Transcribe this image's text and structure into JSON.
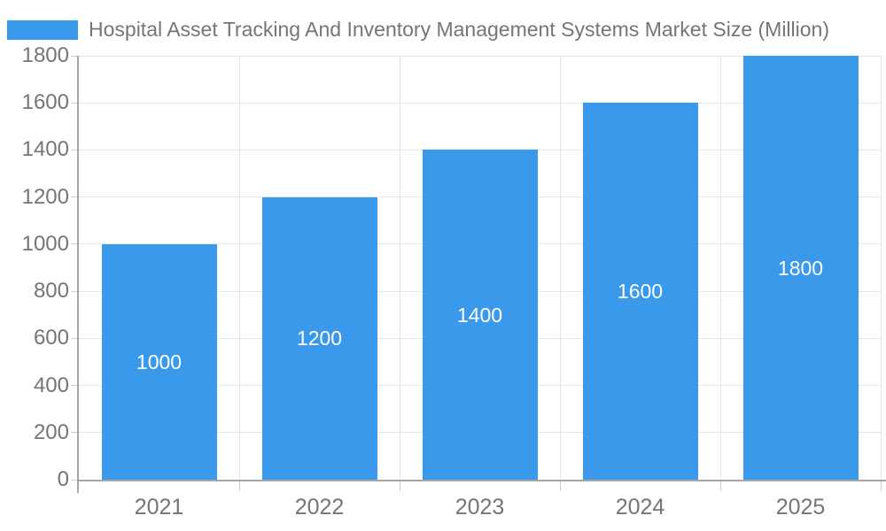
{
  "legend": {
    "label": "Hospital Asset Tracking And Inventory Management Systems Market Size (Million)"
  },
  "colors": {
    "bar": "#3B99EC",
    "grid": "#e6e6e6",
    "tick": "#cccccc",
    "axis": "#a6a6a6",
    "text": "#757575",
    "value_label": "#ffffff",
    "background": "#ffffff"
  },
  "chart_data": {
    "type": "bar",
    "title": "Hospital Asset Tracking And Inventory Management Systems Market Size (Million)",
    "categories": [
      "2021",
      "2022",
      "2023",
      "2024",
      "2025"
    ],
    "values": [
      1000,
      1200,
      1400,
      1600,
      1800
    ],
    "series": [
      {
        "name": "Hospital Asset Tracking And Inventory Management Systems Market Size (Million)",
        "values": [
          1000,
          1200,
          1400,
          1600,
          1800
        ]
      }
    ],
    "value_labels": [
      "1000",
      "1200",
      "1400",
      "1600",
      "1800"
    ],
    "xlabel": "",
    "ylabel": "",
    "ylim": [
      0,
      1800
    ],
    "ytick_step": 200,
    "yticks": [
      0,
      200,
      400,
      600,
      800,
      1000,
      1200,
      1400,
      1600,
      1800
    ],
    "grid": true,
    "legend_position": "top",
    "value_label_position": "inside-center"
  }
}
